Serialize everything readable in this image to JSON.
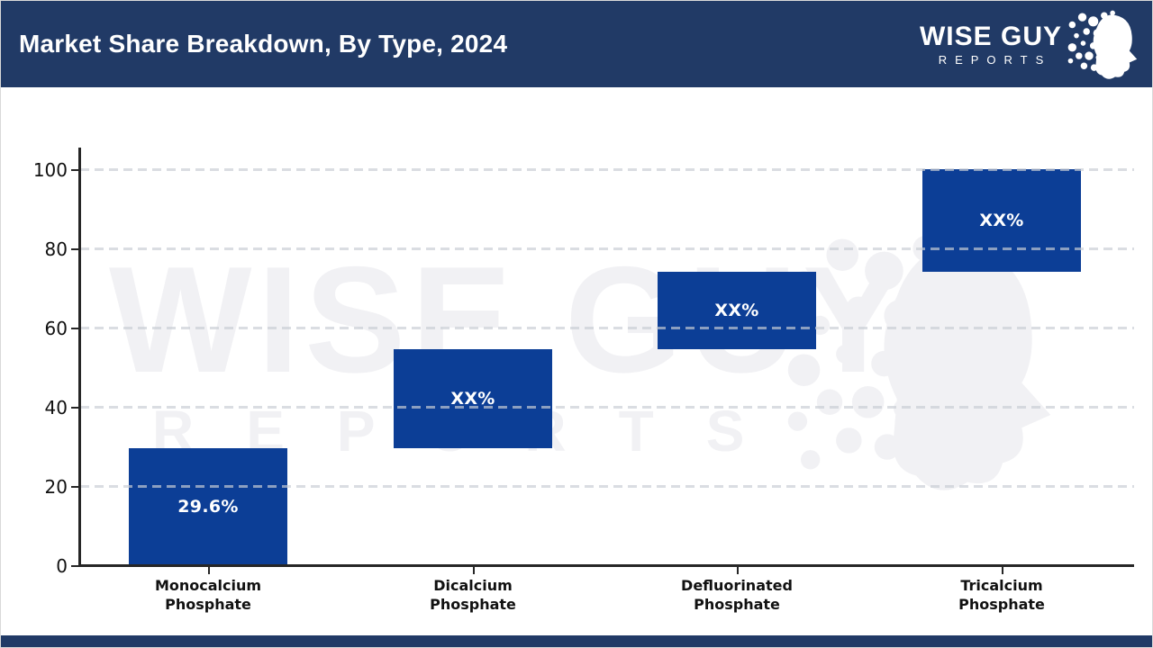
{
  "header": {
    "title": "Market Share Breakdown, By Type, 2024",
    "logo": {
      "line1": "WISE GUY",
      "line2": "REPORTS"
    }
  },
  "watermark": {
    "line1": "WISE GUY",
    "line2": "REPORTS"
  },
  "footer": {},
  "chart_data": {
    "type": "bar",
    "subtype": "floating-waterfall",
    "title": "Market Share Breakdown, By Type, 2024",
    "categories": [
      "Monocalcium\nPhosphate",
      "Dicalcium\nPhosphate",
      "Defluorinated\nPhosphate",
      "Tricalcium\nPhosphate"
    ],
    "segments": [
      {
        "category": "Monocalcium Phosphate",
        "start": 0,
        "end": 29.6,
        "label": "29.6%"
      },
      {
        "category": "Dicalcium Phosphate",
        "start": 29.6,
        "end": 54.5,
        "label": "XX%"
      },
      {
        "category": "Defluorinated Phosphate",
        "start": 54.5,
        "end": 74.0,
        "label": "XX%"
      },
      {
        "category": "Tricalcium Phosphate",
        "start": 74.0,
        "end": 100,
        "label": "XX%"
      }
    ],
    "y_axis": {
      "min": 0,
      "max": 100,
      "ticks": [
        0,
        20,
        40,
        60,
        80,
        100
      ]
    },
    "xlabel": "",
    "ylabel": "",
    "grid": "horizontal-dashed",
    "legend": "none",
    "colors": {
      "bar": "#0c3e96",
      "bar_label": "#ffffff",
      "header_bg": "#213a66",
      "grid": "#d5d9e0",
      "axis": "#262626",
      "watermark": "#f1f1f4"
    }
  }
}
